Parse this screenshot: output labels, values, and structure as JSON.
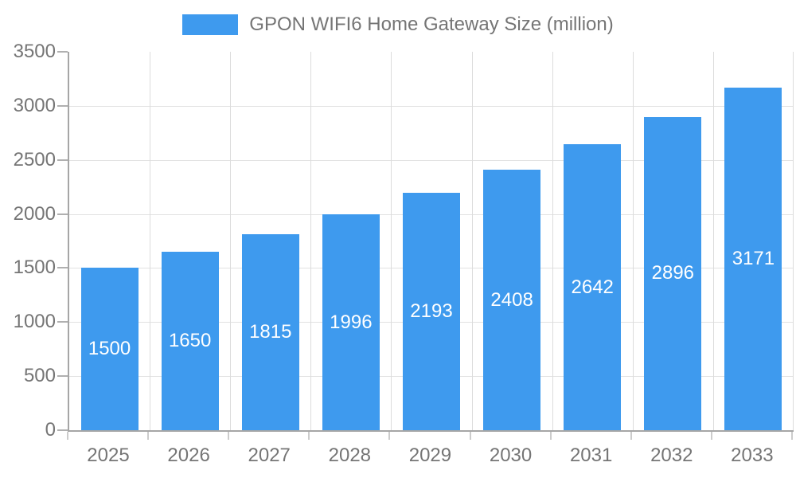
{
  "chart_data": {
    "type": "bar",
    "title": "GPON WIFI6 Home Gateway Size (million)",
    "categories": [
      "2025",
      "2026",
      "2027",
      "2028",
      "2029",
      "2030",
      "2031",
      "2032",
      "2033"
    ],
    "values": [
      1500,
      1650,
      1815,
      1996,
      2193,
      2408,
      2642,
      2896,
      3171
    ],
    "xlabel": "",
    "ylabel": "",
    "ylim": [
      0,
      3500
    ],
    "ytick_step": 500,
    "grid": true,
    "legend_position": "top",
    "bar_color": "#3E9AEE",
    "axis_label_color": "#757575",
    "value_label_color": "#ffffff"
  }
}
